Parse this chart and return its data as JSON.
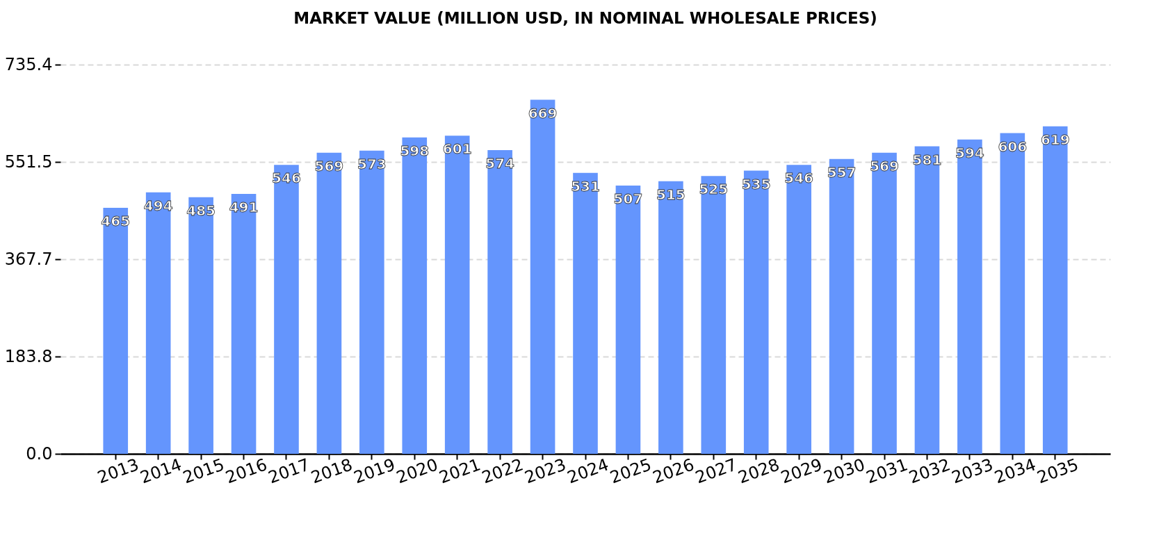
{
  "chart_data": {
    "type": "bar",
    "title": "MARKET VALUE (MILLION USD, IN NOMINAL WHOLESALE PRICES)",
    "categories": [
      "2013",
      "2014",
      "2015",
      "2016",
      "2017",
      "2018",
      "2019",
      "2020",
      "2021",
      "2022",
      "2023",
      "2024",
      "2025",
      "2026",
      "2027",
      "2028",
      "2029",
      "2030",
      "2031",
      "2032",
      "2033",
      "2034",
      "2035"
    ],
    "values": [
      465,
      494,
      485,
      491,
      546,
      569,
      573,
      598,
      601,
      574,
      669,
      531,
      507,
      515,
      525,
      535,
      546,
      557,
      569,
      581,
      594,
      606,
      619
    ],
    "color": "#6495fd",
    "ylim": [
      0,
      735.4
    ],
    "yticks": [
      {
        "value": 0,
        "label": "0.0"
      },
      183.8,
      367.7,
      551.5,
      735.4
    ],
    "grid": "y",
    "data_labels": true
  }
}
